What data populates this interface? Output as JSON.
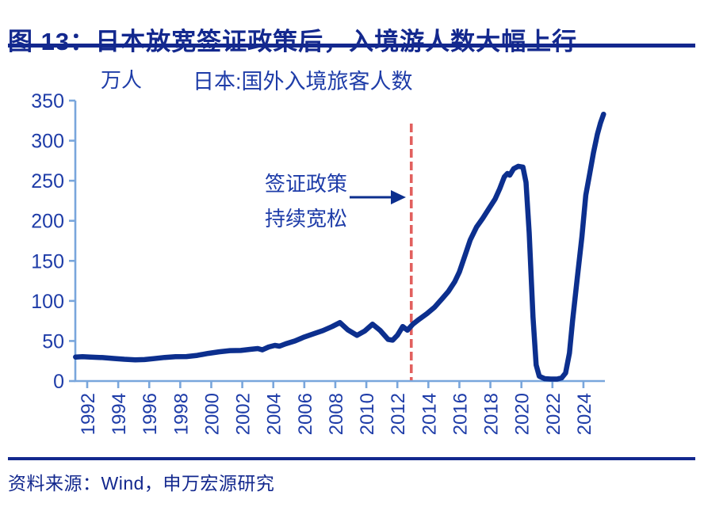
{
  "header": {
    "title": "图 13：日本放宽签证政策后，入境游人数大幅上行"
  },
  "footer": {
    "source": "资料来源：Wind，申万宏源研究"
  },
  "colors": {
    "navy": "#13288e",
    "line_navy": "#0c2f8e",
    "label_blue": "#1e3ca8",
    "axis_blue": "#79a6dc",
    "dashed_red": "#e2605e"
  },
  "chart_data": {
    "type": "line",
    "title": "日本:国外入境旅客人数",
    "unit_label": "万人",
    "xlabel": "",
    "ylabel": "",
    "ylim": [
      0,
      350
    ],
    "xlim": [
      1991.2,
      2025.4
    ],
    "grid": false,
    "legend_position": "none",
    "y_ticks": [
      0,
      50,
      100,
      150,
      200,
      250,
      300,
      350
    ],
    "x_ticks": [
      1992,
      1994,
      1996,
      1998,
      2000,
      2002,
      2004,
      2006,
      2008,
      2010,
      2012,
      2014,
      2016,
      2018,
      2020,
      2022,
      2024
    ],
    "reference_line": {
      "x": 2013,
      "style": "dashed",
      "color": "#e2605e"
    },
    "annotation": {
      "line1": "签证政策",
      "line2": "持续宽松",
      "arrow": "right-to-reference-line"
    },
    "series": [
      {
        "name": "日本:国外入境旅客人数",
        "x": [
          1991.25,
          1991.7,
          1992.2,
          1993,
          1993.7,
          1994.4,
          1995.1,
          1995.7,
          1996.3,
          1997,
          1997.7,
          1998.4,
          1999.1,
          1999.8,
          2000.5,
          2001.2,
          2001.9,
          2002.5,
          2003,
          2003.3,
          2003.7,
          2004.1,
          2004.4,
          2004.8,
          2005.4,
          2006,
          2006.6,
          2007.2,
          2007.8,
          2008.3,
          2008.8,
          2009.4,
          2009.9,
          2010.4,
          2010.9,
          2011.4,
          2011.7,
          2012,
          2012.35,
          2012.65,
          2013,
          2013.4,
          2013.9,
          2014.4,
          2014.9,
          2015.3,
          2015.7,
          2016,
          2016.35,
          2016.7,
          2017.1,
          2017.5,
          2017.9,
          2018.3,
          2018.6,
          2018.9,
          2019.1,
          2019.25,
          2019.5,
          2019.8,
          2020.1,
          2020.3,
          2020.5,
          2020.75,
          2020.95,
          2021.15,
          2021.5,
          2021.9,
          2022.3,
          2022.6,
          2022.85,
          2023.1,
          2023.3,
          2023.6,
          2023.9,
          2024.15,
          2024.4,
          2024.65,
          2024.9,
          2025.1,
          2025.3
        ],
        "values": [
          30,
          30.5,
          30,
          29.3,
          28.2,
          27.2,
          26.5,
          26.8,
          28,
          29.5,
          30.4,
          30.6,
          32,
          34.5,
          36.5,
          38,
          38.2,
          39.5,
          40.5,
          39,
          42.5,
          44.5,
          43.5,
          46.5,
          50,
          55,
          59,
          63,
          68,
          73,
          64,
          57,
          62.5,
          71,
          63,
          52,
          51,
          57,
          68,
          63.5,
          71,
          77,
          84,
          92,
          103,
          112,
          124,
          136,
          156,
          176,
          192,
          203,
          215,
          227,
          240,
          255,
          259,
          257,
          265,
          268,
          267,
          248,
          185,
          80,
          20,
          6,
          3,
          2.5,
          2.5,
          4,
          10,
          35,
          75,
          128,
          180,
          232,
          258,
          285,
          308,
          322,
          333
        ]
      }
    ]
  }
}
